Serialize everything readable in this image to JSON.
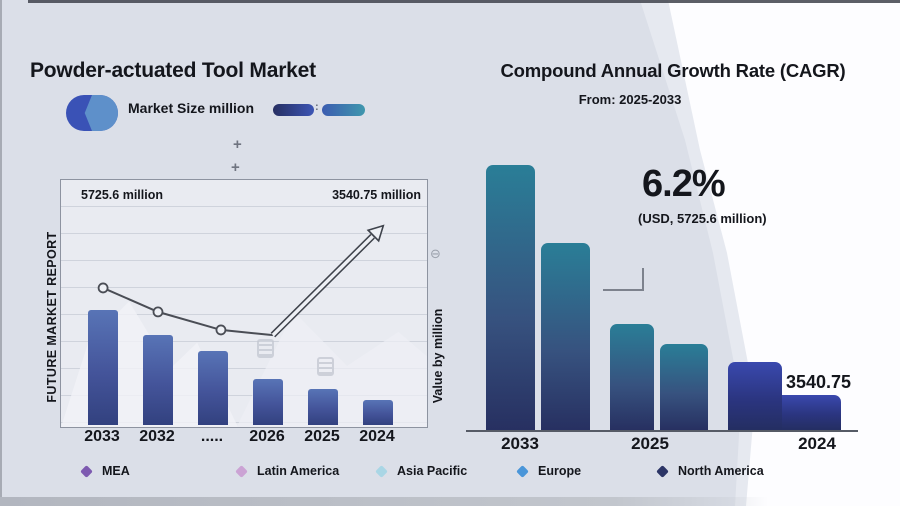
{
  "header": {
    "title": "Powder-actuated Tool Market",
    "series_badge": "Market Size million",
    "ratio_colon": ":"
  },
  "left_box": {
    "watermark": "FUTURE MARKET REPORT",
    "value_left": "5725.6 million",
    "value_right": "3540.75 million"
  },
  "axis": {
    "value_by_million": "Value by million"
  },
  "decor": {
    "plus": "+",
    "circle_minus": "⊖"
  },
  "legend": {
    "items": [
      {
        "label": "MEA",
        "color": "#7d5ab0"
      },
      {
        "label": "Latin America",
        "color": "#cba3d4"
      },
      {
        "label": "Asia Pacific",
        "color": "#a9d6e5"
      },
      {
        "label": "Europe",
        "color": "#4a96d9"
      },
      {
        "label": "North America",
        "color": "#2c3566"
      }
    ]
  },
  "colors": {
    "left_bar_top": "#5874b6",
    "left_bar_bottom": "#32417f",
    "right_bar_teal_top": "#2a7e97",
    "right_bar_navy_bottom": "#273061",
    "right_bar_blue_top": "#3a49ae",
    "background": "#dbdfe8",
    "swoosh": "#fdfdff"
  },
  "chart_data": [
    {
      "id": "market_size_trend",
      "type": "bar",
      "title": "Powder-actuated Tool Market",
      "series_label": "Market Size million",
      "categories": [
        "2033",
        "2032",
        ".....",
        "2026",
        "2025",
        "2024"
      ],
      "bar_values_relative": [
        1.0,
        0.78,
        0.64,
        0.4,
        0.31,
        0.22
      ],
      "known_values": {
        "2033": "5725.6 million",
        "2024": "3540.75 million"
      },
      "trendline_points_relative": [
        [
          0.115,
          0.437
        ],
        [
          0.265,
          0.534
        ],
        [
          0.437,
          0.607
        ],
        [
          0.579,
          0.628
        ]
      ],
      "trend_marker_count": 3,
      "arrow_to_relative": [
        0.869,
        0.202
      ],
      "ylabel": "Value by million",
      "note": "decorative bars descending left-to-right; y axis unlabeled; trend line dips then arrow rises"
    },
    {
      "id": "cagr_grouped_bars",
      "type": "bar",
      "title": "Compound Annual Growth Rate (CAGR)",
      "subtitle": "From: 2025-2033",
      "cagr_percent": "6.2%",
      "cagr_detail": "(USD, 5725.6 million)",
      "categories": [
        "2033",
        "2025",
        "2024"
      ],
      "series": [
        {
          "name": "bar-a",
          "values_relative": [
            1.0,
            0.4,
            0.256
          ]
        },
        {
          "name": "bar-b",
          "values_relative": [
            0.705,
            0.324,
            0.132
          ]
        }
      ],
      "callout": {
        "category": "2024",
        "value": "3540.75"
      },
      "ylabel": "Value by million",
      "note": "y axis unlabeled; only 2024 second bar annotated with 3540.75"
    }
  ]
}
